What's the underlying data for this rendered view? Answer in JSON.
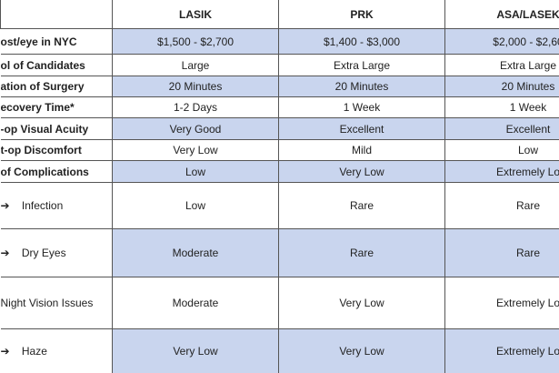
{
  "table": {
    "columns": [
      "LASIK",
      "PRK",
      "ASA/LASEK"
    ],
    "rows": [
      {
        "label": "ost/eye in NYC",
        "cells": [
          "$1,500 - $2,700",
          "$1,400 - $3,000",
          "$2,000 - $2,60"
        ]
      },
      {
        "label": "ol of Candidates",
        "cells": [
          "Large",
          "Extra Large",
          "Extra Large"
        ]
      },
      {
        "label": "ation of Surgery",
        "cells": [
          "20 Minutes",
          "20 Minutes",
          "20 Minutes"
        ]
      },
      {
        "label": "ecovery Time*",
        "cells": [
          "1-2 Days",
          "1 Week",
          "1 Week"
        ]
      },
      {
        "label": "-op Visual Acuity",
        "cells": [
          "Very Good",
          "Excellent",
          "Excellent"
        ]
      },
      {
        "label": "t-op Discomfort",
        "cells": [
          "Very Low",
          "Mild",
          "Low"
        ]
      },
      {
        "label": "of Complications",
        "cells": [
          "Low",
          "Very Low",
          "Extremely Lo"
        ]
      },
      {
        "label": "➔    Infection",
        "cells": [
          "Low",
          "Rare",
          "Rare"
        ]
      },
      {
        "label": "➔    Dry Eyes",
        "cells": [
          "Moderate",
          "Rare",
          "Rare"
        ]
      },
      {
        "label": "Night Vision Issues",
        "cells": [
          "Moderate",
          "Very Low",
          "Extremely Lo"
        ]
      },
      {
        "label": "➔    Haze",
        "cells": [
          "Very Low",
          "Very Low",
          "Extremely Lo"
        ]
      }
    ]
  }
}
